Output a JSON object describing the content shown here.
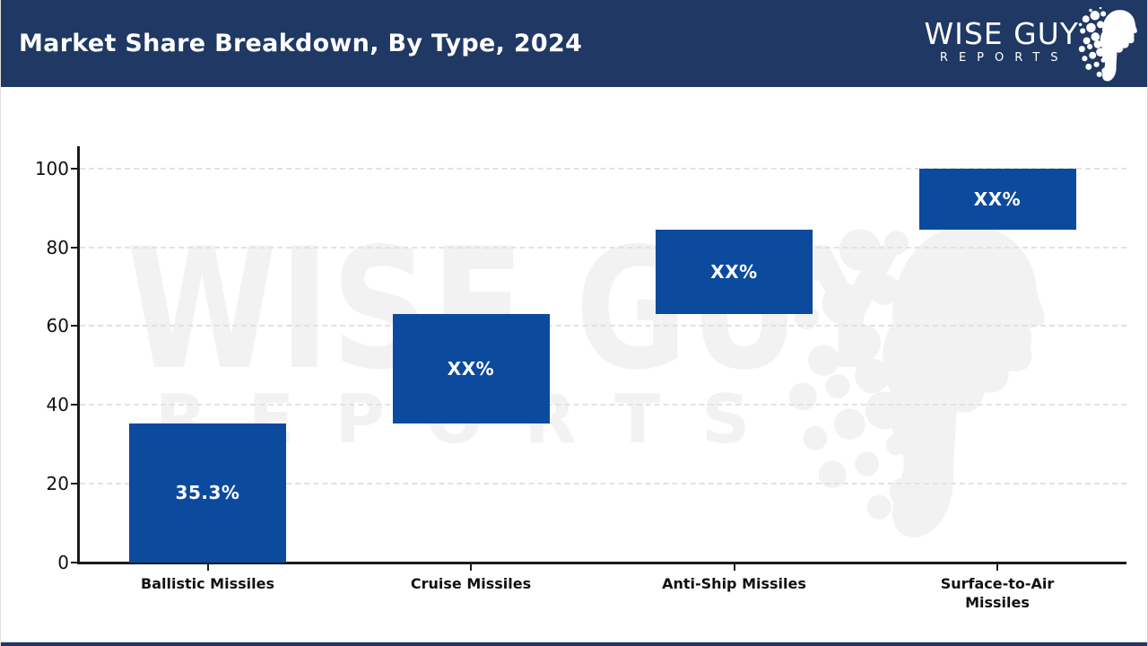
{
  "header": {
    "title": "Market Share Breakdown, By Type, 2024",
    "bg_color": "#1f3864",
    "logo": {
      "line1": "WISE GUY",
      "line2": "REPORTS"
    }
  },
  "watermark": {
    "line1": "WISE GUY",
    "line2": "REPORTS",
    "color": "#f2f2f2"
  },
  "chart_data": {
    "type": "bar",
    "variant": "floating-waterfall",
    "title": "Market Share Breakdown, By Type, 2024",
    "categories": [
      "Ballistic Missiles",
      "Cruise Missiles",
      "Anti-Ship Missiles",
      "Surface-to-Air Missiles"
    ],
    "series": [
      {
        "name": "Market Share",
        "segments": [
          {
            "category": "Ballistic Missiles",
            "start": 0,
            "end": 35.3,
            "label": "35.3%"
          },
          {
            "category": "Cruise Missiles",
            "start": 35.3,
            "end": 63,
            "label": "XX%"
          },
          {
            "category": "Anti-Ship Missiles",
            "start": 63,
            "end": 84.5,
            "label": "XX%"
          },
          {
            "category": "Surface-to-Air Missiles",
            "start": 84.5,
            "end": 100,
            "label": "XX%"
          }
        ]
      }
    ],
    "yticks": [
      0,
      20,
      40,
      60,
      80,
      100
    ],
    "ylim": [
      0,
      105
    ],
    "xlabel": "",
    "ylabel": "",
    "grid": "horizontal-dashed",
    "legend": "none",
    "bar_color": "#0c4a9e",
    "bar_label_color": "#ffffff",
    "axis_color": "#1a1a1a"
  },
  "footer": {
    "bar_color": "#1f3864"
  }
}
